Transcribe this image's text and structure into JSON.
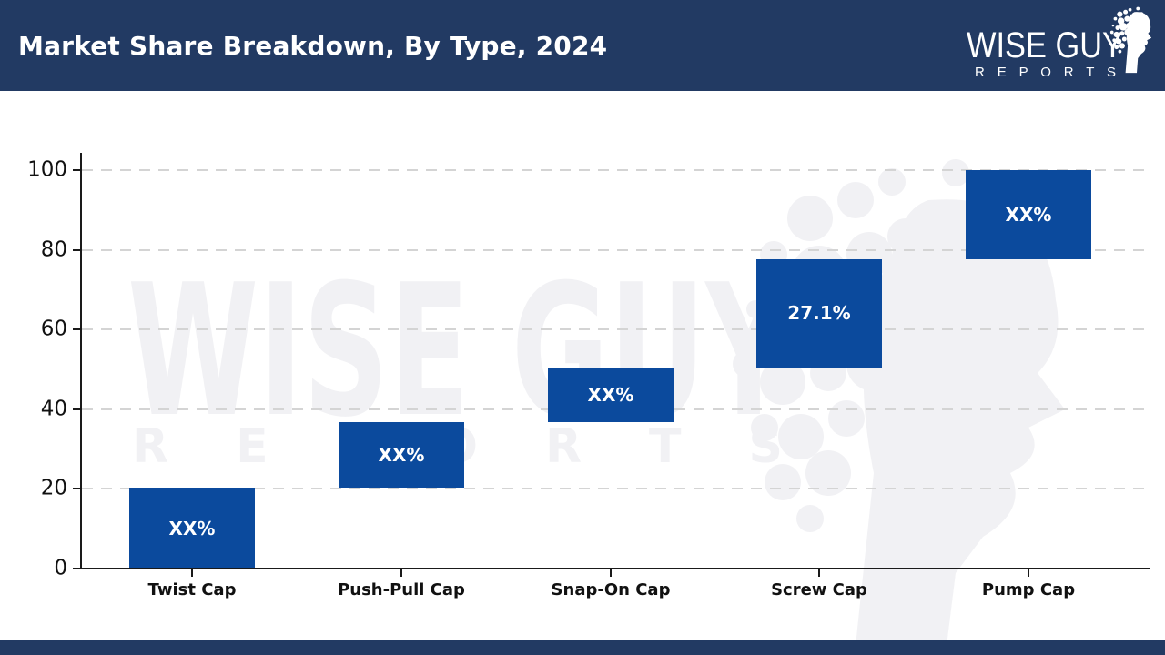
{
  "header": {
    "title": "Market Share Breakdown, By Type, 2024",
    "background_color": "#223a63",
    "logo": {
      "line1": "WISE GUY",
      "line2": "R E P O R T S",
      "head_icon": "dotted-head-profile-icon"
    }
  },
  "footer": {
    "background_color": "#223a63"
  },
  "watermark": {
    "line1": "WISE GUY",
    "line2": "R E P O R T S",
    "head_icon": "dotted-head-profile-watermark",
    "color": "#f1f1f4"
  },
  "chart_data": {
    "type": "bar",
    "subtype": "waterfall-floating-bars",
    "title": "Market Share Breakdown, By Type, 2024",
    "xlabel": "",
    "ylabel": "",
    "ylim": [
      0,
      100
    ],
    "yticks": [
      0,
      20,
      40,
      60,
      80,
      100
    ],
    "grid": "horizontal dashed",
    "legend": "none",
    "bar_color": "#0b4a9d",
    "bar_label_color": "#ffffff",
    "categories": [
      "Twist Cap",
      "Push-Pull Cap",
      "Snap-On Cap",
      "Screw Cap",
      "Pump Cap"
    ],
    "segments": [
      {
        "category": "Twist Cap",
        "start": 0,
        "end": 20.3,
        "height": 20.3,
        "label": "XX%"
      },
      {
        "category": "Push-Pull Cap",
        "start": 20.3,
        "end": 36.7,
        "height": 16.4,
        "label": "XX%"
      },
      {
        "category": "Snap-On Cap",
        "start": 36.7,
        "end": 50.5,
        "height": 13.8,
        "label": "XX%"
      },
      {
        "category": "Screw Cap",
        "start": 50.5,
        "end": 77.6,
        "height": 27.1,
        "label": "27.1%"
      },
      {
        "category": "Pump Cap",
        "start": 77.6,
        "end": 100,
        "height": 22.4,
        "label": "XX%"
      }
    ]
  }
}
